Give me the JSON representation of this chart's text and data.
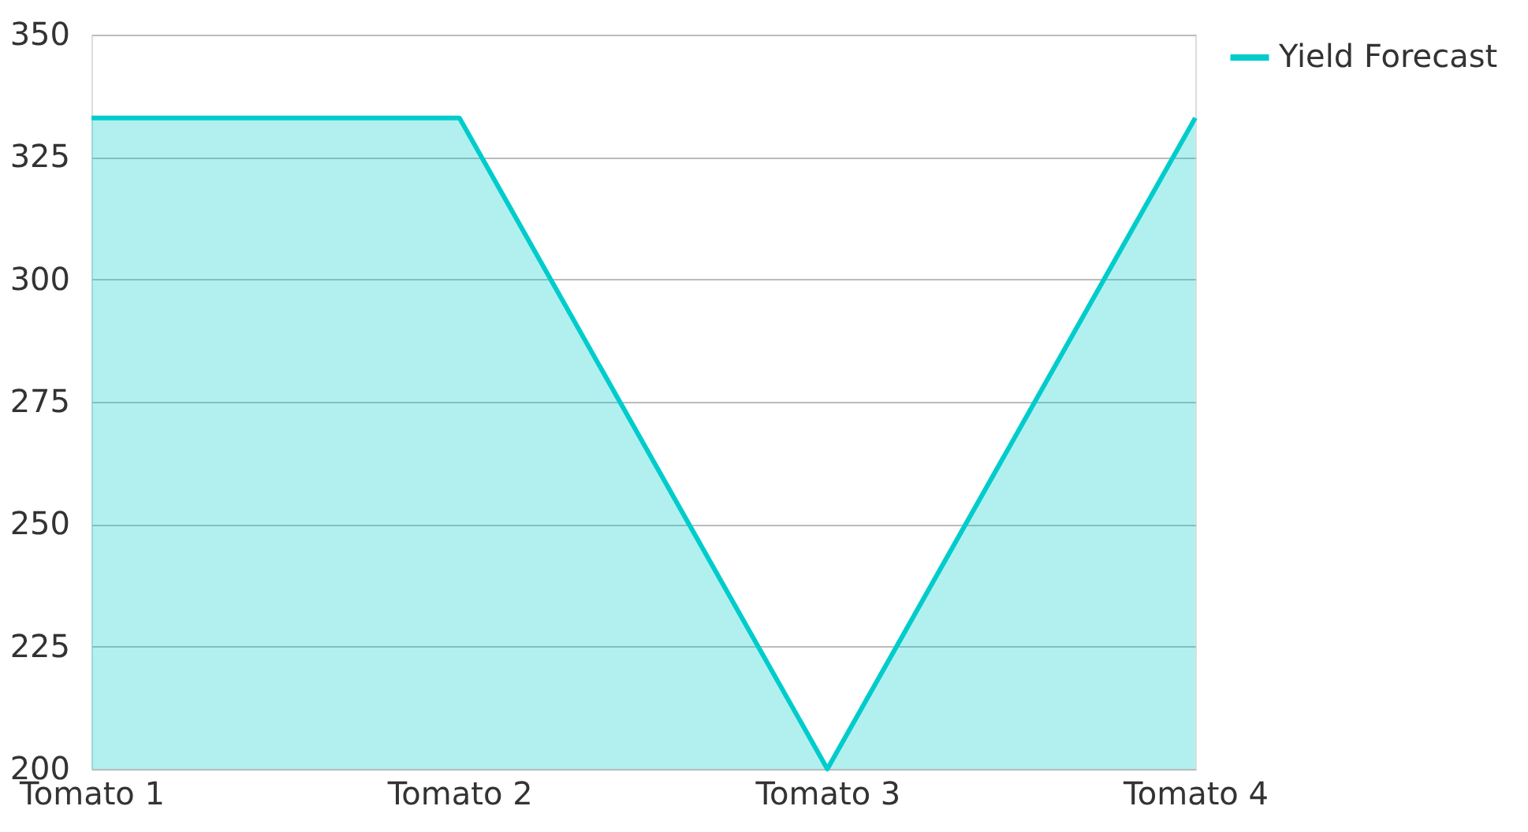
{
  "chart_data": {
    "type": "area",
    "categories": [
      "Tomato 1",
      "Tomato 2",
      "Tomato 3",
      "Tomato 4"
    ],
    "series": [
      {
        "name": "Yield Forecast",
        "color": "#00cccc",
        "values": [
          333,
          333,
          200,
          333
        ]
      }
    ],
    "ylim": [
      200,
      350
    ],
    "yticks": [
      200,
      225,
      250,
      275,
      300,
      325,
      350
    ],
    "grid": "y",
    "legend": "top right"
  }
}
